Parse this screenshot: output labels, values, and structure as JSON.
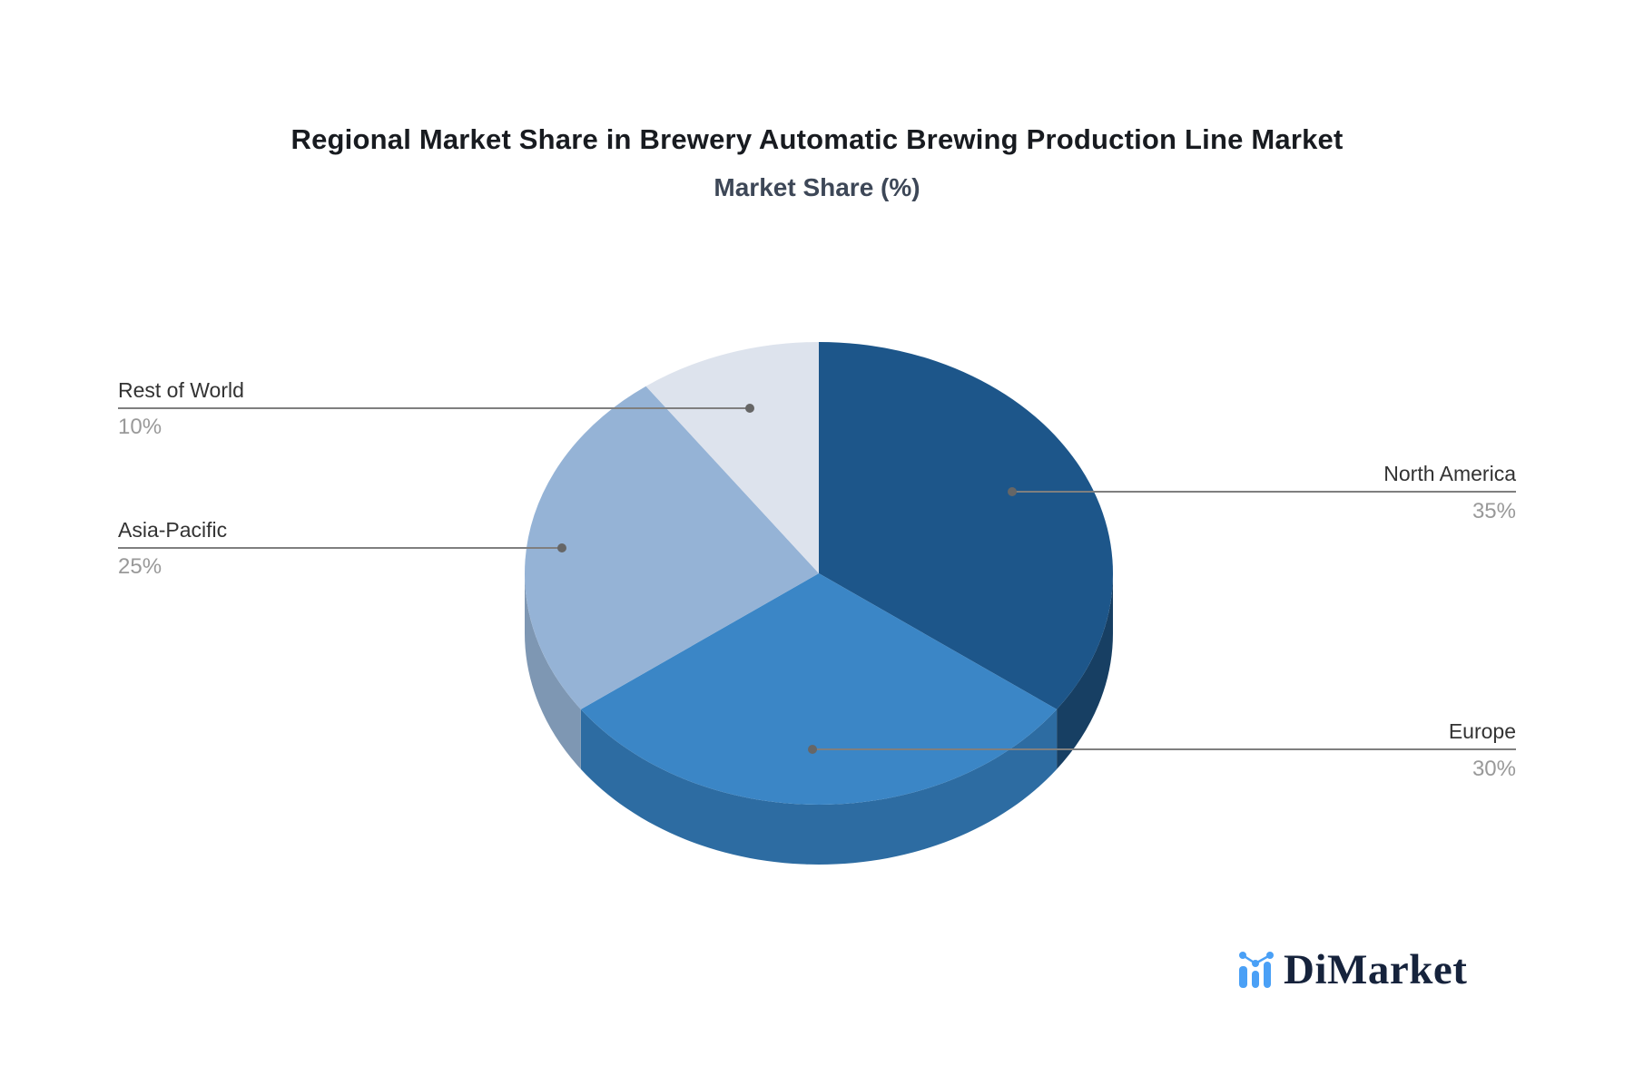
{
  "title": "Regional Market Share in Brewery Automatic Brewing Production Line Market",
  "subtitle": "Market Share (%)",
  "brand": {
    "name": "DiMarket",
    "icon": "bar-chart-logo-icon",
    "icon_color": "#4aa0f6",
    "text_color": "#16233c"
  },
  "chart_data": {
    "type": "pie",
    "title": "Market Share (%)",
    "unit": "%",
    "start_angle_deg": 90,
    "direction": "clockwise",
    "legend": "none",
    "style_3d": true,
    "label_text_color": "#333333",
    "pct_text_color": "#999999",
    "leader_line_color": "#7f7f7f",
    "leader_dot_color": "#666666",
    "categories": [
      "North America",
      "Europe",
      "Asia-Pacific",
      "Rest of World"
    ],
    "values": [
      35,
      30,
      25,
      10
    ],
    "slices": [
      {
        "label": "North America",
        "value": 35,
        "pct_label": "35%",
        "color": "#1d568a",
        "side_color": "#173f63",
        "label_side": "right"
      },
      {
        "label": "Europe",
        "value": 30,
        "pct_label": "30%",
        "color": "#3b86c6",
        "side_color": "#2d6ca2",
        "label_side": "right"
      },
      {
        "label": "Asia-Pacific",
        "value": 25,
        "pct_label": "25%",
        "color": "#95b3d6",
        "side_color": "#7e97b3",
        "label_side": "left"
      },
      {
        "label": "Rest of World",
        "value": 10,
        "pct_label": "10%",
        "color": "#dde3ed",
        "side_color": "#b9c4d4",
        "label_side": "left"
      }
    ]
  }
}
